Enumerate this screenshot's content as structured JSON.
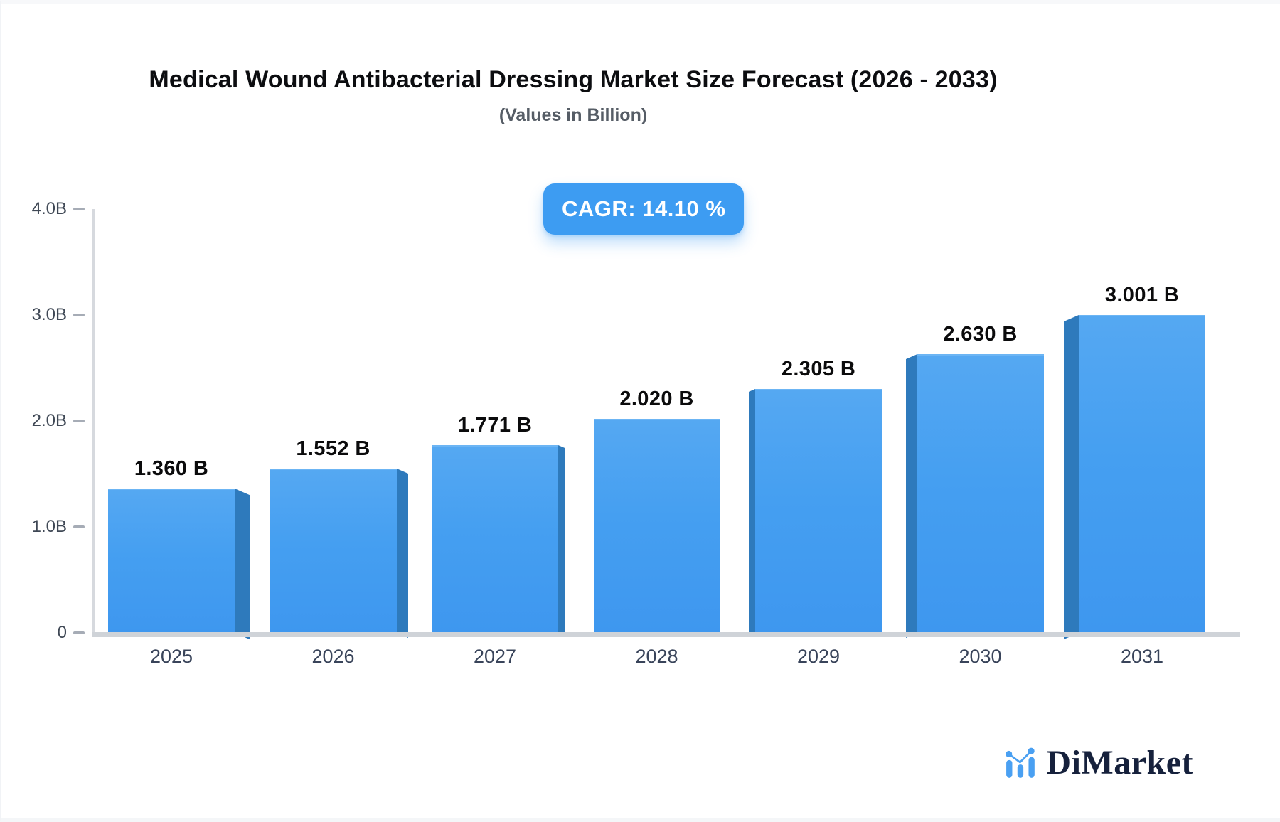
{
  "page": {
    "background": "#ffffff"
  },
  "header": {
    "title": "Medical Wound Antibacterial Dressing Market Size Forecast (2026 - 2033)",
    "subtitle": "(Values in Billion)"
  },
  "cagr_badge": {
    "label": "CAGR: 14.10 %",
    "background": "#3d9cf2",
    "text_color": "#ffffff"
  },
  "chart_data": {
    "type": "bar",
    "title": "Medical Wound Antibacterial Dressing Market Size Forecast (2026 - 2033)",
    "subtitle": "(Values in Billion)",
    "categories": [
      "2025",
      "2026",
      "2027",
      "2028",
      "2029",
      "2030",
      "2031"
    ],
    "values": [
      1.36,
      1.552,
      1.771,
      2.02,
      2.305,
      2.63,
      3.001
    ],
    "value_labels": [
      "1.360 B",
      "1.552 B",
      "1.771 B",
      "2.020 B",
      "2.305 B",
      "2.630 B",
      "3.001 B"
    ],
    "unit": "Billion",
    "cagr": "14.10 %",
    "xlabel": "",
    "ylabel": "",
    "ylim": [
      0,
      4.0
    ],
    "yticks": [
      {
        "value": 4.0,
        "label": "4.0B"
      },
      {
        "value": 3.0,
        "label": "3.0B"
      },
      {
        "value": 2.0,
        "label": "2.0B"
      },
      {
        "value": 1.0,
        "label": "1.0B"
      },
      {
        "value": 0.0,
        "label": "0"
      }
    ],
    "grid": false,
    "legend": null,
    "style_3d": true,
    "colors": {
      "bar_top": "#55a8f2",
      "bar_mid": "#459ff1",
      "bar_bottom": "#3e97ef",
      "bar_side": "#2e7abc",
      "axis": "#d6d9de",
      "baseline": "#cfd3d8",
      "tick": "#a6acb6",
      "value_label": "#0b0b0c",
      "year_label": "#39445a"
    }
  },
  "footer": {
    "brand": "DiMarket",
    "brand_icon": "bar-chart-logo-icon",
    "brand_text_color": "#16213c",
    "brand_icon_color": "#4aa0f2"
  }
}
